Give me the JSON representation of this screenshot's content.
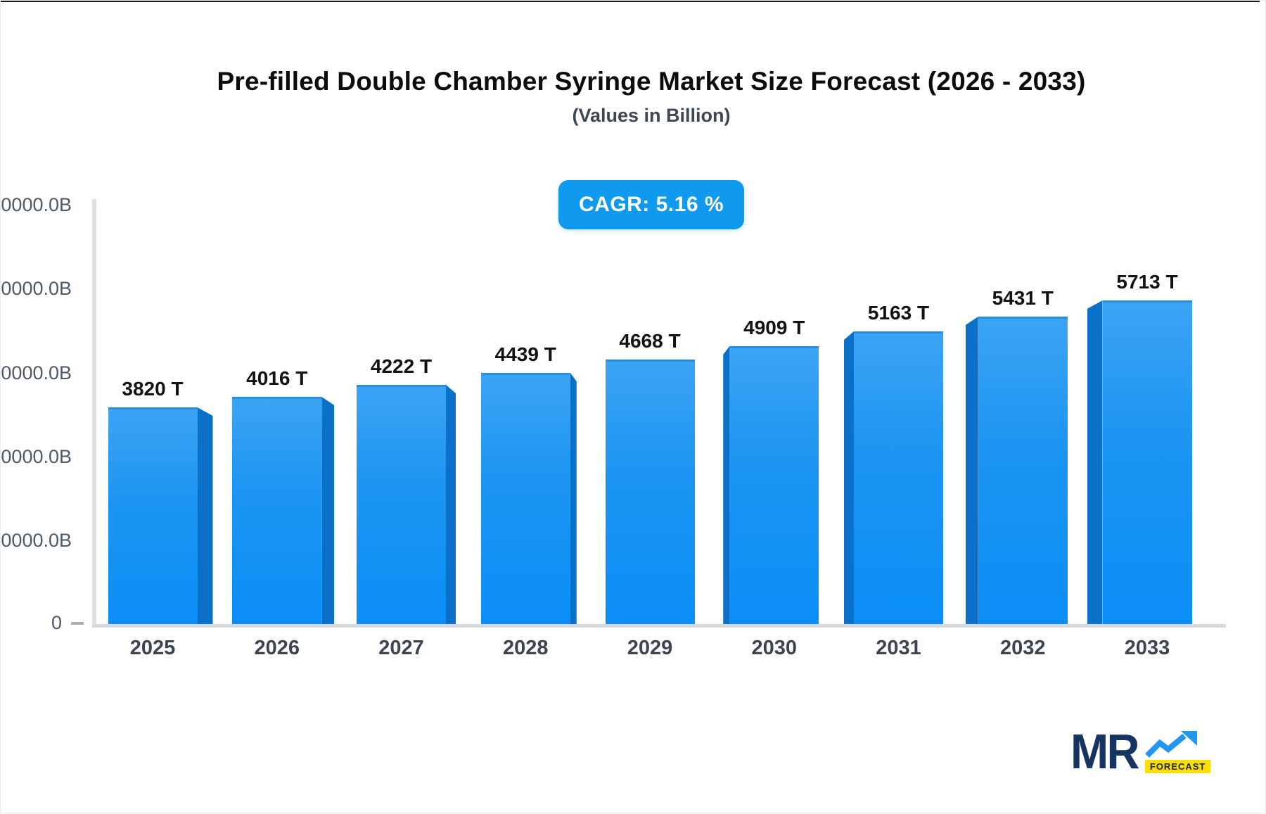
{
  "header": {
    "title": "Pre-filled Double Chamber Syringe Market Size Forecast (2026 - 2033)",
    "subtitle": "(Values in Billion)",
    "cagr_label": "CAGR: 5.16 %"
  },
  "chart_data": {
    "type": "bar",
    "title": "Pre-filled Double Chamber Syringe Market Size Forecast (2026 - 2033)",
    "subtitle": "(Values in Billion)",
    "cagr_percent": 5.16,
    "categories": [
      "2025",
      "2026",
      "2027",
      "2028",
      "2029",
      "2030",
      "2031",
      "2032",
      "2033"
    ],
    "values": [
      3820,
      4016,
      4222,
      4439,
      4668,
      4909,
      5163,
      5431,
      5713
    ],
    "value_labels": [
      "3820 T",
      "4016 T",
      "4222 T",
      "4439 T",
      "4668 T",
      "4909 T",
      "5163 T",
      "5431 T",
      "5713 T"
    ],
    "ylabel_ticks_display": [
      "0000.0B",
      "0000.0B",
      "0000.0B",
      "0000.0B",
      "0000.0B",
      "0"
    ],
    "ylim": [
      0,
      7450
    ],
    "grid": false,
    "legend": false,
    "bar_style": "3d-extruded-toward-center"
  },
  "colors": {
    "bar_face_top": "#3da4f4",
    "bar_face_bottom": "#0a8ef6",
    "bar_side": "#0a70c8",
    "accent_blue": "#0f9af0",
    "axis_line": "#dee0e3",
    "tick_text": "#4e5a68",
    "year_text": "#3a4554",
    "value_text": "#101214",
    "logo_navy": "#173360",
    "logo_yellow": "#ffdd00"
  },
  "logo": {
    "text": "MR",
    "badge": "FORECAST"
  }
}
